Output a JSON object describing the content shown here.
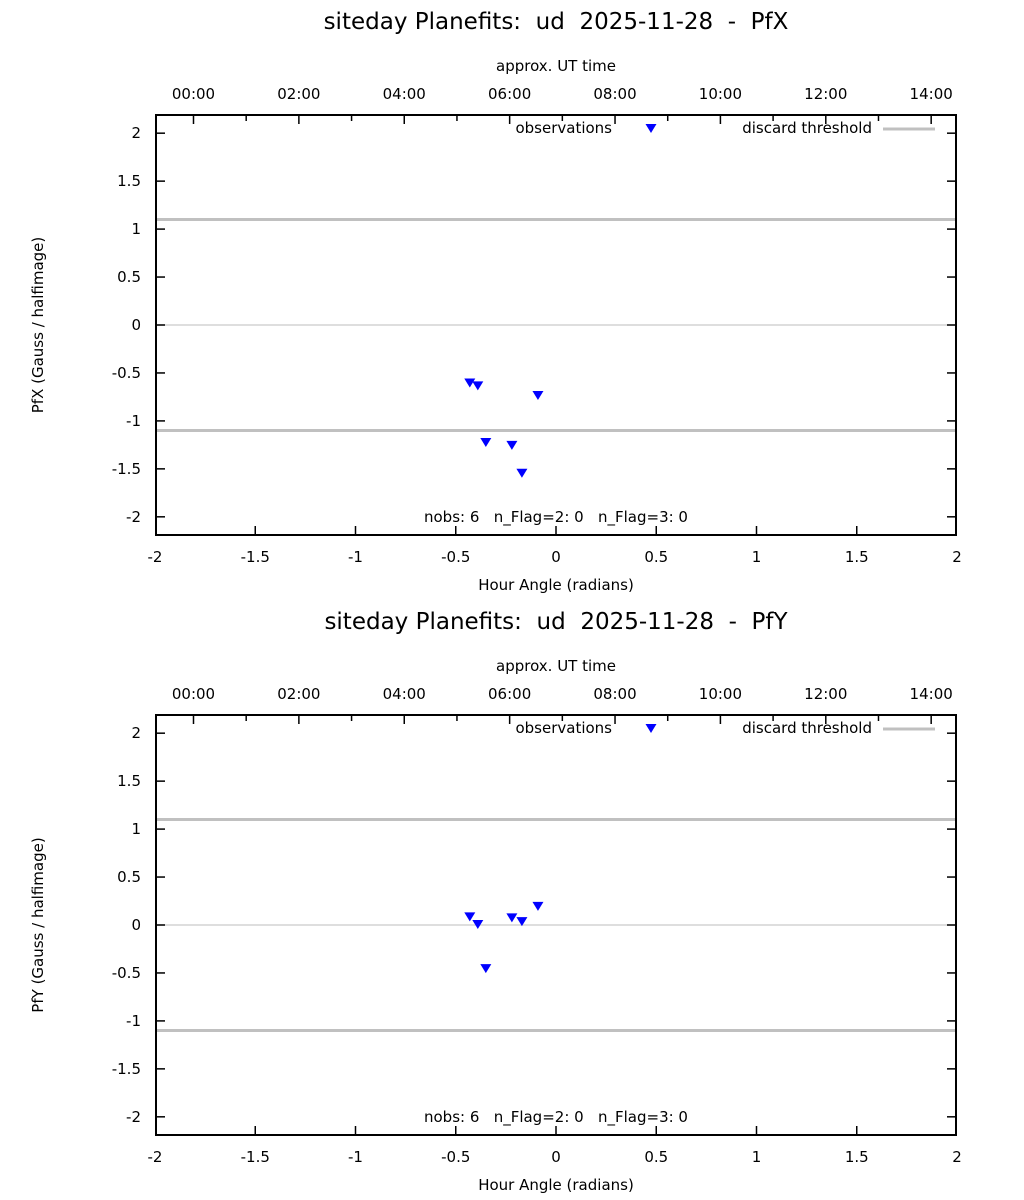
{
  "figure": {
    "background": "#ffffff",
    "marker_color": "#0000ff",
    "threshold_color": "#c0c0c0",
    "zero_line_color": "#d3d3d3",
    "border_color": "#000000"
  },
  "chart_data": [
    {
      "type": "scatter",
      "title": "siteday Planefits:  ud  2025-11-28  -  PfX",
      "x2label": "approx. UT time",
      "xlabel": "Hour Angle (radians)",
      "ylabel": "PfX (Gauss / halfimage)",
      "xlim": [
        -2,
        2
      ],
      "ylim": [
        -2.2,
        2.2
      ],
      "xtick_labels": [
        "-2",
        "-1.5",
        "-1",
        "-0.5",
        "0",
        "0.5",
        "1",
        "1.5",
        "2"
      ],
      "ytick_labels": [
        "2",
        "1.5",
        "1",
        "0.5",
        "0",
        "-0.5",
        "-1",
        "-1.5",
        "-2"
      ],
      "x2ticks": {
        "labels": [
          "00:00",
          "02:00",
          "04:00",
          "06:00",
          "08:00",
          "10:00",
          "12:00",
          "14:00"
        ],
        "first_frac": 0.048,
        "hour_step_frac": 0.0657,
        "n_hour_ticks": 15
      },
      "legend": [
        {
          "label": "observations",
          "type": "marker"
        },
        {
          "label": "discard threshold",
          "type": "line"
        }
      ],
      "series": [
        {
          "name": "observations",
          "marker": "triangle-down",
          "color": "#0000ff",
          "points": [
            [
              -0.43,
              -0.6
            ],
            [
              -0.39,
              -0.63
            ],
            [
              -0.35,
              -1.22
            ],
            [
              -0.22,
              -1.25
            ],
            [
              -0.17,
              -1.54
            ],
            [
              -0.09,
              -0.73
            ]
          ]
        }
      ],
      "thresholds": {
        "values": [
          1.1,
          -1.1
        ],
        "color": "#c0c0c0"
      },
      "zero_line": {
        "value": 0,
        "color": "#d3d3d3"
      },
      "annotation": "nobs: 6   n_Flag=2: 0   n_Flag=3: 0",
      "grid": false,
      "legend_position": "top-inside"
    },
    {
      "type": "scatter",
      "title": "siteday Planefits:  ud  2025-11-28  -  PfY",
      "x2label": "approx. UT time",
      "xlabel": "Hour Angle (radians)",
      "ylabel": "PfY (Gauss / halfimage)",
      "xlim": [
        -2,
        2
      ],
      "ylim": [
        -2.2,
        2.2
      ],
      "xtick_labels": [
        "-2",
        "-1.5",
        "-1",
        "-0.5",
        "0",
        "0.5",
        "1",
        "1.5",
        "2"
      ],
      "ytick_labels": [
        "2",
        "1.5",
        "1",
        "0.5",
        "0",
        "-0.5",
        "-1",
        "-1.5",
        "-2"
      ],
      "x2ticks": {
        "labels": [
          "00:00",
          "02:00",
          "04:00",
          "06:00",
          "08:00",
          "10:00",
          "12:00",
          "14:00"
        ],
        "first_frac": 0.048,
        "hour_step_frac": 0.0657,
        "n_hour_ticks": 15
      },
      "legend": [
        {
          "label": "observations",
          "type": "marker"
        },
        {
          "label": "discard threshold",
          "type": "line"
        }
      ],
      "series": [
        {
          "name": "observations",
          "marker": "triangle-down",
          "color": "#0000ff",
          "points": [
            [
              -0.43,
              0.09
            ],
            [
              -0.39,
              0.01
            ],
            [
              -0.35,
              -0.45
            ],
            [
              -0.22,
              0.08
            ],
            [
              -0.17,
              0.04
            ],
            [
              -0.09,
              0.2
            ]
          ]
        }
      ],
      "thresholds": {
        "values": [
          1.1,
          -1.1
        ],
        "color": "#c0c0c0"
      },
      "zero_line": {
        "value": 0,
        "color": "#d3d3d3"
      },
      "annotation": "nobs: 6   n_Flag=2: 0   n_Flag=3: 0",
      "grid": false,
      "legend_position": "top-inside"
    }
  ]
}
